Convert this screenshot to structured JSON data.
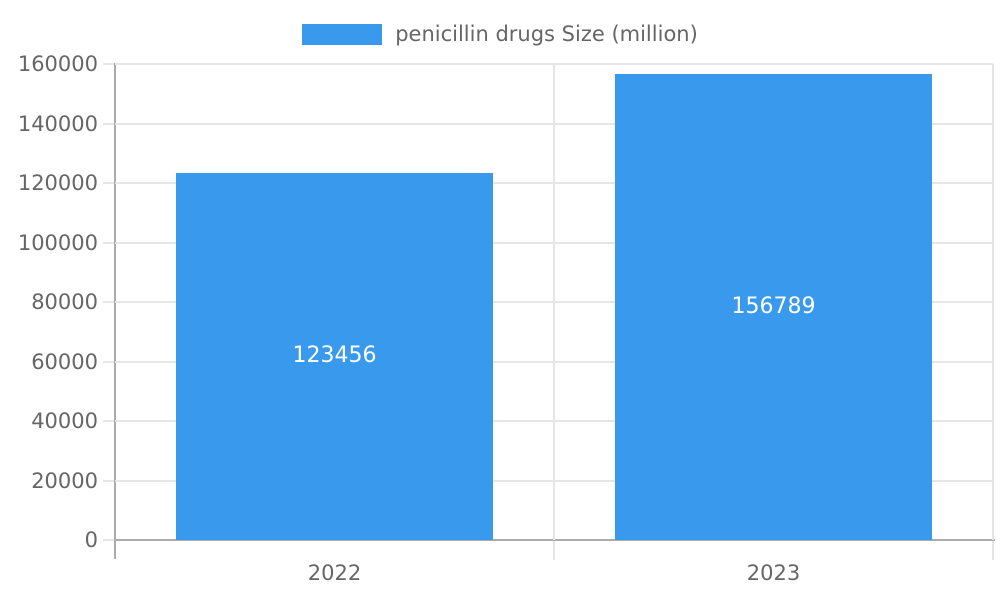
{
  "legend": {
    "label": "penicillin drugs Size (million)"
  },
  "colors": {
    "bar": "#3999EC",
    "grid": "#e6e6e6",
    "axis": "#ababab",
    "tick_text": "#666666",
    "bar_label_text": "#ffffff"
  },
  "chart_data": {
    "type": "bar",
    "title": "",
    "xlabel": "",
    "ylabel": "",
    "categories": [
      "2022",
      "2023"
    ],
    "series": [
      {
        "name": "penicillin drugs Size (million)",
        "values": [
          123456,
          156789
        ]
      }
    ],
    "value_labels": [
      "123456",
      "156789"
    ],
    "ylim": [
      0,
      160000
    ],
    "y_tick_step": 20000,
    "y_ticks": [
      0,
      20000,
      40000,
      60000,
      80000,
      100000,
      120000,
      140000,
      160000
    ],
    "y_tick_labels": [
      "0",
      "20000",
      "40000",
      "60000",
      "80000",
      "100000",
      "120000",
      "140000",
      "160000"
    ],
    "grid": true,
    "legend_position": "top"
  }
}
